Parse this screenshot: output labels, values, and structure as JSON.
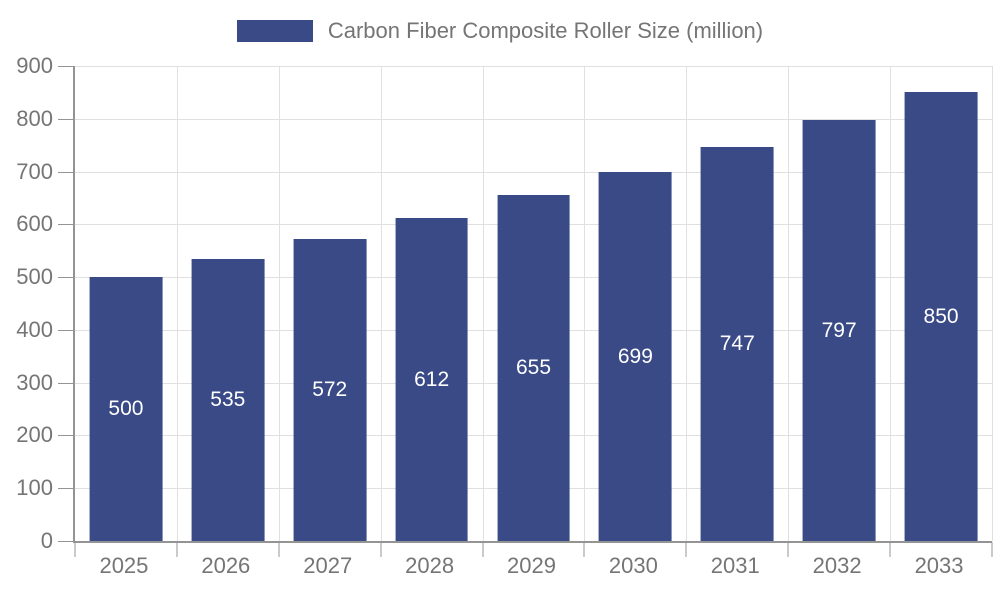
{
  "legend": {
    "items": [
      {
        "label": "Carbon Fiber Composite Roller Size (million)",
        "color": "#394A87"
      }
    ]
  },
  "chart_data": {
    "type": "bar",
    "title": "Carbon Fiber Composite Roller Size (million)",
    "categories": [
      "2025",
      "2026",
      "2027",
      "2028",
      "2029",
      "2030",
      "2031",
      "2032",
      "2033"
    ],
    "series": [
      {
        "name": "Carbon Fiber Composite Roller Size (million)",
        "values": [
          500,
          535,
          572,
          612,
          655,
          699,
          747,
          797,
          850
        ]
      }
    ],
    "xlabel": "",
    "ylabel": "",
    "ylim": [
      0,
      900
    ],
    "yticks": [
      0,
      100,
      200,
      300,
      400,
      500,
      600,
      700,
      800,
      900
    ],
    "grid": true,
    "legend_position": "top",
    "value_labels_position": "inside-center",
    "bar_width_fraction": 0.715
  },
  "colors": {
    "background": "#FFFFFF",
    "bar": "#394A87",
    "axis_text": "#757575",
    "legend_text": "#757575",
    "grid_line": "#E0E0E0",
    "axis_line": "#949494",
    "tick_line": "#949494",
    "value_label": "#FFFFFF"
  }
}
